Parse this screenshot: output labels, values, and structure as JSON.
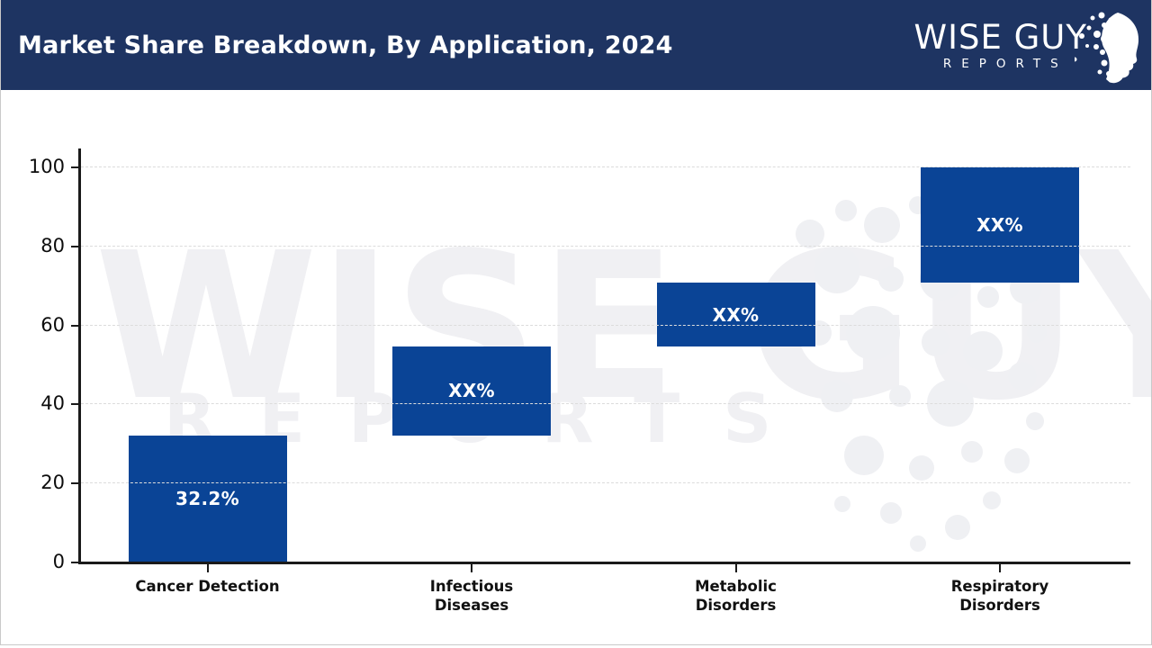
{
  "header": {
    "title": "Market Share Breakdown, By Application, 2024",
    "logo": {
      "line1": "WISE GUY",
      "line2": "REPORTS"
    }
  },
  "watermark": {
    "line1": "WISE GUY",
    "line2": "REPORTS"
  },
  "chart_data": {
    "type": "bar",
    "subtype": "waterfall",
    "title": "Market Share Breakdown, By Application, 2024",
    "xlabel": "",
    "ylabel": "",
    "ylim": [
      0,
      100
    ],
    "yticks": [
      0,
      20,
      40,
      60,
      80,
      100
    ],
    "grid": "horizontal-dashed",
    "legend": "none",
    "bar_color": "#0a4496",
    "bar_label_color": "#ffffff",
    "categories": [
      "Cancer Detection",
      "Infectious Diseases",
      "Metabolic Disorders",
      "Respiratory Disorders"
    ],
    "category_label_lines": [
      [
        "Cancer Detection"
      ],
      [
        "Infectious",
        "Diseases"
      ],
      [
        "Metabolic",
        "Disorders"
      ],
      [
        "Respiratory",
        "Disorders"
      ]
    ],
    "segments": [
      {
        "category": "Cancer Detection",
        "start": 0,
        "end": 32.2,
        "label": "32.2%"
      },
      {
        "category": "Infectious Diseases",
        "start": 32.2,
        "end": 54.7,
        "label": "XX%"
      },
      {
        "category": "Metabolic Disorders",
        "start": 54.7,
        "end": 70.8,
        "label": "XX%"
      },
      {
        "category": "Respiratory Disorders",
        "start": 70.8,
        "end": 100,
        "label": "XX%"
      }
    ]
  }
}
